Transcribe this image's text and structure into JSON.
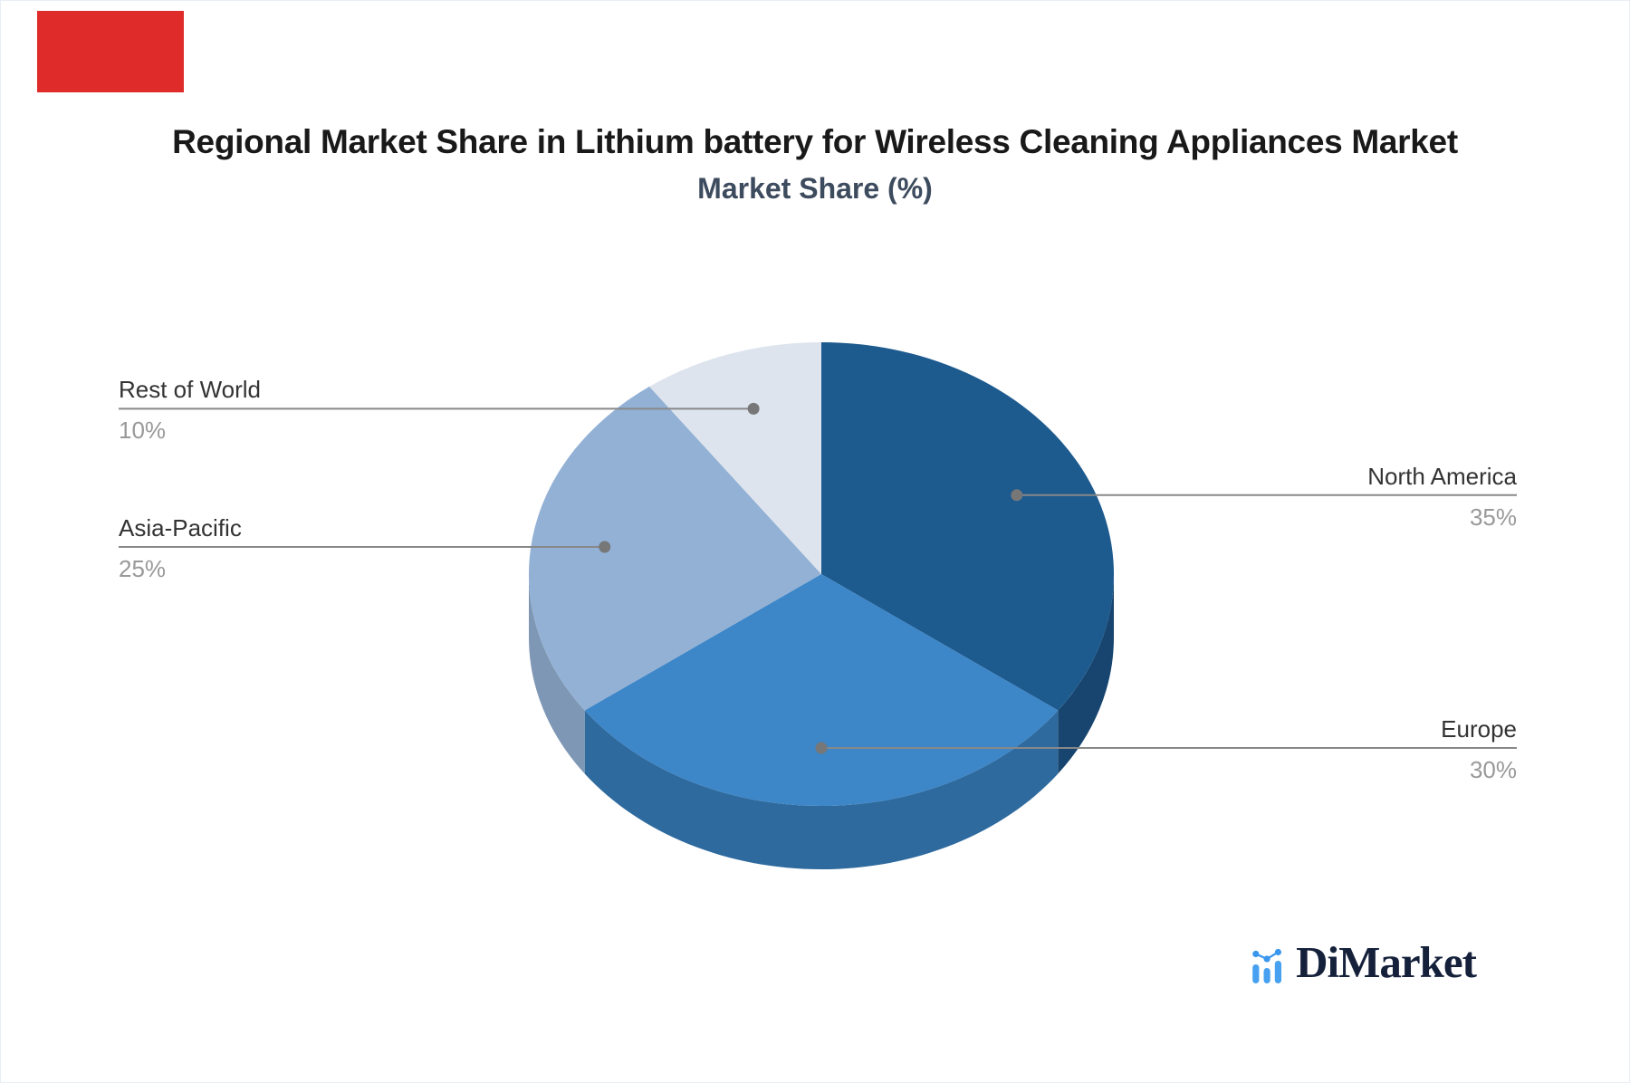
{
  "artifact_marker": {
    "color": "#e02b2b"
  },
  "chart_data": {
    "type": "pie",
    "style": "3d",
    "title": "Regional Market Share in Lithium battery for Wireless Cleaning Appliances Market",
    "subtitle": "Market Share (%)",
    "title_color": "#191919",
    "subtitle_color": "#3d4b5e",
    "categories": [
      "North America",
      "Europe",
      "Asia-Pacific",
      "Rest of World"
    ],
    "values": [
      35,
      30,
      25,
      10
    ],
    "value_labels": [
      "35%",
      "30%",
      "25%",
      "10%"
    ],
    "slice_colors": [
      "#1d5a8e",
      "#3d86c8",
      "#92b1d5",
      "#dde4ee"
    ],
    "slice_side_colors": [
      "#17456f",
      "#2e6a9e",
      "#7e97b5",
      "#c5cfdd"
    ],
    "start_angle_deg": 0,
    "direction": "clockwise",
    "legend": "none",
    "label_side": [
      "right",
      "right",
      "left",
      "left"
    ],
    "leader_line_color": "#888888",
    "leader_dot_color": "#777777",
    "category_label_color": "#333333",
    "value_label_color": "#999999"
  },
  "branding": {
    "logo_text": "DiMarket",
    "logo_icon": "bar-line-chart-icon",
    "logo_text_color": "#15213b",
    "logo_icon_bar_color": "#47a1f0",
    "logo_icon_dot_color": "#3b97ee"
  }
}
